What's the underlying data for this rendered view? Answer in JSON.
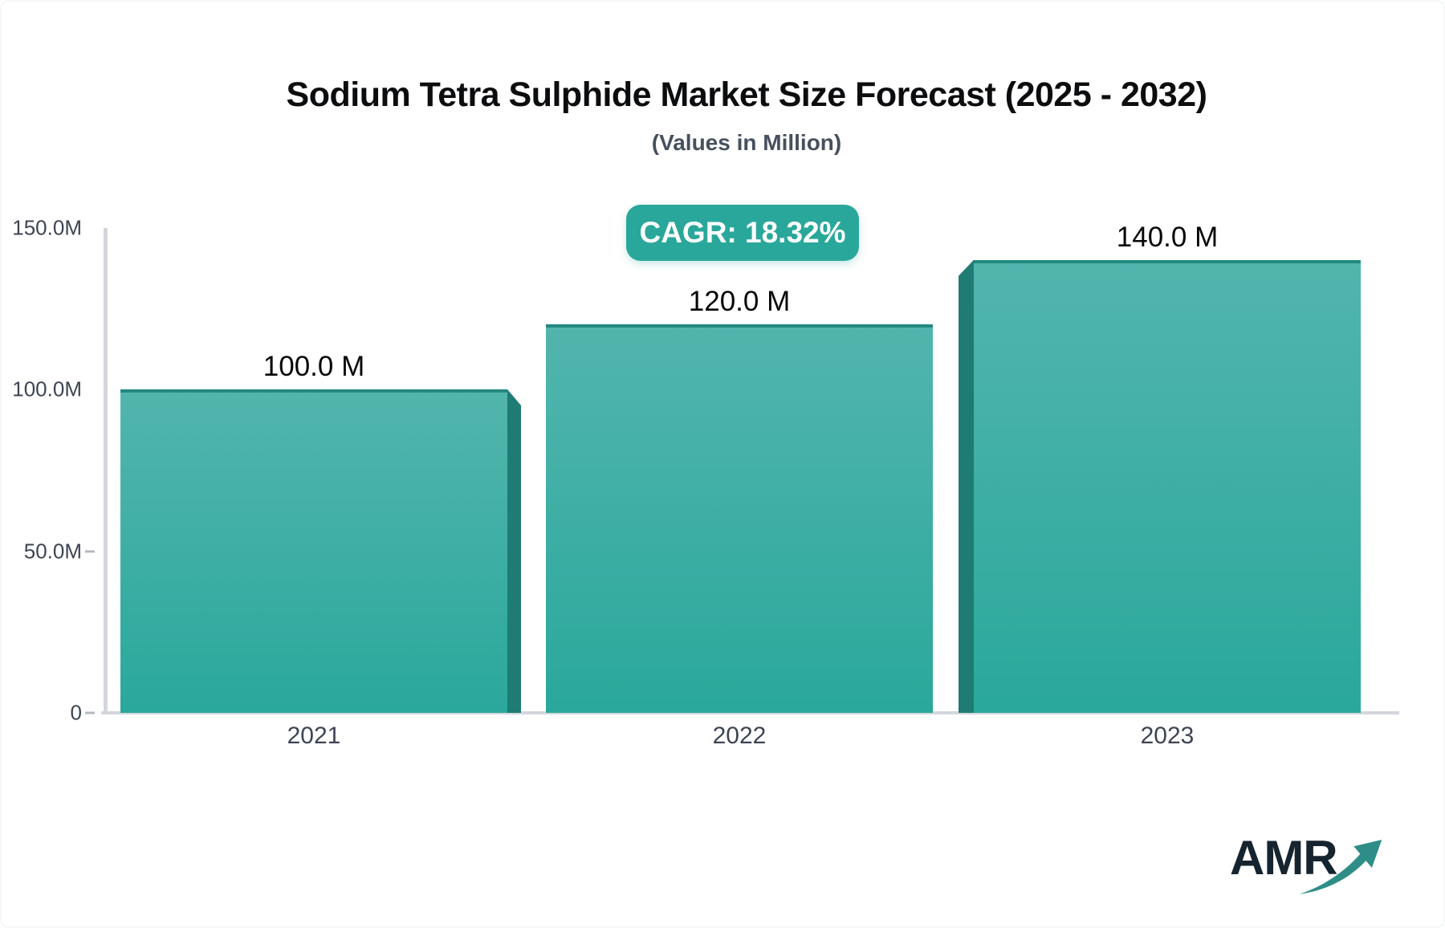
{
  "header": {
    "title": "Sodium Tetra Sulphide Market Size Forecast (2025 - 2032)",
    "subtitle": "(Values in Million)"
  },
  "badge": {
    "label": "CAGR: 18.32%"
  },
  "logo": {
    "text": "AMR"
  },
  "chart_data": {
    "type": "bar",
    "title": "Sodium Tetra Sulphide Market Size Forecast (2025 - 2032)",
    "subtitle": "(Values in Million)",
    "unit": "Million",
    "cagr_percent": 18.32,
    "categories": [
      "2021",
      "2022",
      "2023"
    ],
    "values": [
      100.0,
      120.0,
      140.0
    ],
    "value_labels": [
      "100.0 M",
      "120.0 M",
      "140.0 M"
    ],
    "ylim": [
      0,
      150
    ],
    "yticks": [
      {
        "label": "150.0M",
        "value": 150,
        "dash": false
      },
      {
        "label": "100.0M",
        "value": 100,
        "dash": false
      },
      {
        "label": "50.0M",
        "value": 50,
        "dash": true
      },
      {
        "label": "0",
        "value": 0,
        "dash": true
      }
    ],
    "grid": false,
    "legend": "none",
    "bar_sides": [
      "right",
      "none",
      "left"
    ],
    "colors": {
      "bar_top": "#52b5ad",
      "bar_bottom": "#2aa89b",
      "bar_border": "#23887f",
      "bar_side": "#1e7c74",
      "badge_bg": "#2aa79b",
      "axis_line": "#d3d6dc",
      "tick_text": "#3d4554",
      "value_text": "#070708",
      "logo_navy": "#16242f",
      "logo_teal": "#2e8e87"
    }
  }
}
